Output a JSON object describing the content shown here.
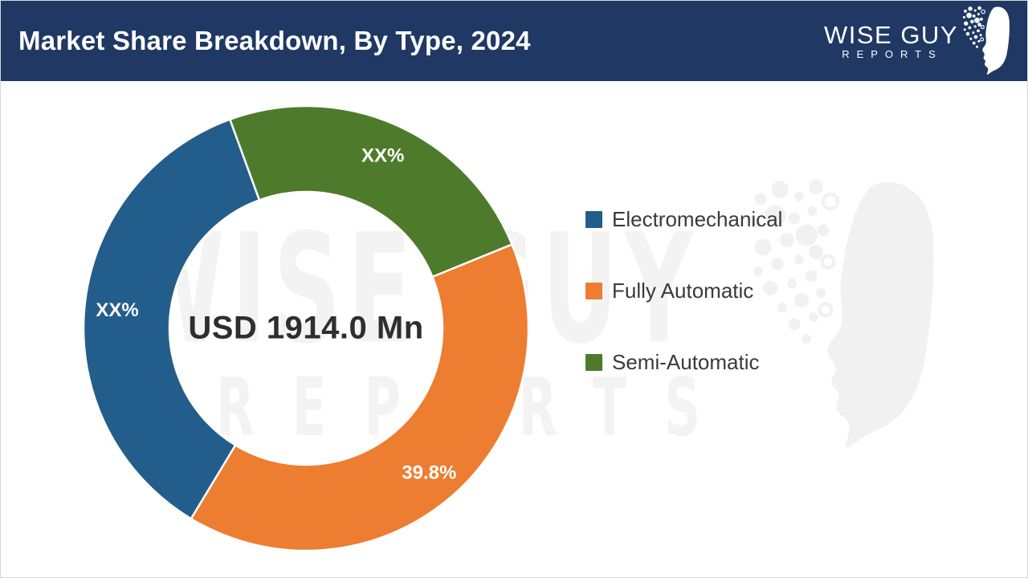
{
  "header": {
    "title": "Market Share Breakdown, By Type, 2024",
    "logo": {
      "line1": "WISE GUY",
      "line2": "REPORTS"
    }
  },
  "watermark": {
    "line1": "WISE GUY",
    "line2": "REPORTS"
  },
  "colors": {
    "header_bg": "#1f3864",
    "title_text": "#ffffff",
    "center_text": "#2e2e2e",
    "legend_text": "#3a3a3a",
    "slice_label_text": "#ffffff",
    "watermark": "#f3f3f3",
    "page_border": "#d8d8d8"
  },
  "chart_data": {
    "type": "pie",
    "subtype": "donut",
    "title": "Market Share Breakdown, By Type, 2024",
    "center_label": "USD 1914.0 Mn",
    "legend_position": "right",
    "start_angle_deg_clockwise_from_top": -20,
    "order_note": "segments drawn counterclockwise from start angle in legend order",
    "segments": [
      {
        "name": "Electromechanical",
        "label": "XX%",
        "share_pct": 35.8,
        "share_is_estimated_from_arc": true,
        "color": "#235d8b"
      },
      {
        "name": "Fully Automatic",
        "label": "39.8%",
        "share_pct": 39.8,
        "share_is_estimated_from_arc": false,
        "color": "#ed7d31"
      },
      {
        "name": "Semi-Automatic",
        "label": "XX%",
        "share_pct": 24.4,
        "share_is_estimated_from_arc": true,
        "color": "#4e7b2b"
      }
    ]
  }
}
